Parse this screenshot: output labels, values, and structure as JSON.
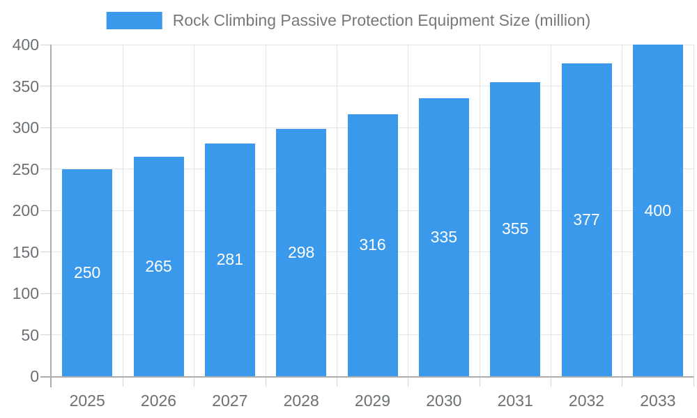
{
  "chart_data": {
    "type": "bar",
    "title": "Rock Climbing Passive Protection Equipment Size (million)",
    "categories": [
      "2025",
      "2026",
      "2027",
      "2028",
      "2029",
      "2030",
      "2031",
      "2032",
      "2033"
    ],
    "values": [
      250,
      265,
      281,
      298,
      316,
      335,
      355,
      377,
      400
    ],
    "xlabel": "",
    "ylabel": "",
    "ylim": [
      0,
      400
    ],
    "yticks": [
      0,
      50,
      100,
      150,
      200,
      250,
      300,
      350,
      400
    ],
    "grid": true,
    "legend_position": "top-center",
    "bar_labels_shown": true
  },
  "legend": {
    "label": "Rock Climbing Passive Protection Equipment Size (million)"
  },
  "colors": {
    "bar": "#3B99EC",
    "legend_text": "#76797C",
    "axis_label": "#6B7074",
    "axis_line": "#ACACAC",
    "gridline": "#E4E4E4",
    "tick": "#D4D4D4",
    "bar_value_text": "#FFFFFF",
    "background": "#FFFFFF"
  }
}
